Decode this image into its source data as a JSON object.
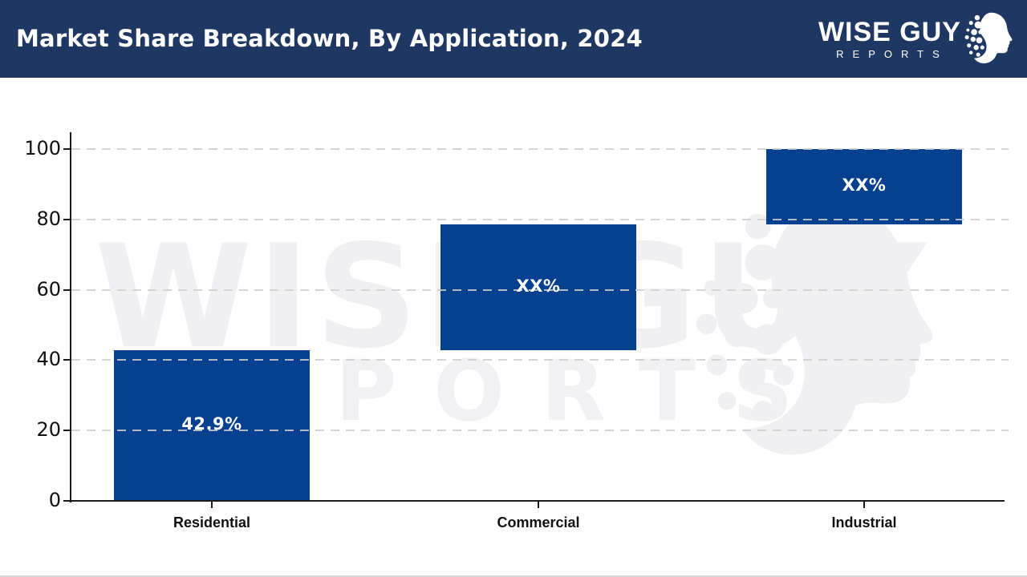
{
  "header": {
    "title": "Market Share Breakdown, By Application, 2024",
    "logo": {
      "line1": "WISE GUY",
      "line2": "REPORTS"
    }
  },
  "watermark": {
    "line1": "WISE GUY",
    "line2": "REPORTS"
  },
  "chart_data": {
    "type": "bar",
    "subtype": "floating-segment-waterfall",
    "title": "Market Share Breakdown, By Application, 2024",
    "categories": [
      "Residential",
      "Commercial",
      "Industrial"
    ],
    "series": [
      {
        "name": "Market share (%)",
        "segments": [
          {
            "category": "Residential",
            "start": 0,
            "end": 42.9,
            "label": "42.9%"
          },
          {
            "category": "Commercial",
            "start": 42.9,
            "end": 78.5,
            "label": "XX%"
          },
          {
            "category": "Industrial",
            "start": 78.5,
            "end": 100,
            "label": "XX%"
          }
        ]
      }
    ],
    "xlabel": "",
    "ylabel": "",
    "ylim": [
      0,
      100
    ],
    "yticks": [
      0,
      20,
      40,
      60,
      80,
      100
    ],
    "grid": {
      "horizontal": true,
      "style": "dashed"
    },
    "legend": "none",
    "bar_color": "#05418f",
    "bar_label_color": "#ffffff"
  },
  "colors": {
    "header_bg": "#1f3863",
    "bar": "#05418f",
    "grid": "#d4d4d4",
    "axis": "#1a1a1a",
    "watermark": "#f0f0f2"
  }
}
